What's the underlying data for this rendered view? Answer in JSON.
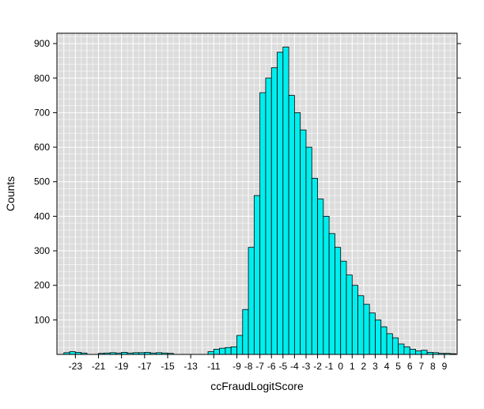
{
  "chart_data": {
    "type": "bar",
    "subtype": "histogram",
    "title": "",
    "xlabel": "ccFraudLogitScore",
    "ylabel": "Counts",
    "bin_width": 0.5,
    "bins": [
      [
        -24.0,
        5
      ],
      [
        -23.5,
        8
      ],
      [
        -23.0,
        6
      ],
      [
        -22.5,
        4
      ],
      [
        -21.0,
        3
      ],
      [
        -20.5,
        4
      ],
      [
        -20.0,
        5
      ],
      [
        -19.5,
        4
      ],
      [
        -19.0,
        6
      ],
      [
        -18.5,
        4
      ],
      [
        -18.0,
        5
      ],
      [
        -17.5,
        5
      ],
      [
        -17.0,
        6
      ],
      [
        -16.5,
        4
      ],
      [
        -16.0,
        5
      ],
      [
        -15.5,
        4
      ],
      [
        -15.0,
        3
      ],
      [
        -11.5,
        8
      ],
      [
        -11.0,
        15
      ],
      [
        -10.5,
        18
      ],
      [
        -10.0,
        20
      ],
      [
        -9.5,
        22
      ],
      [
        -9.0,
        55
      ],
      [
        -8.5,
        130
      ],
      [
        -8.0,
        310
      ],
      [
        -7.5,
        460
      ],
      [
        -7.0,
        758
      ],
      [
        -6.5,
        800
      ],
      [
        -6.0,
        830
      ],
      [
        -5.5,
        875
      ],
      [
        -5.0,
        890
      ],
      [
        -4.5,
        750
      ],
      [
        -4.0,
        700
      ],
      [
        -3.5,
        650
      ],
      [
        -3.0,
        600
      ],
      [
        -2.5,
        510
      ],
      [
        -2.0,
        450
      ],
      [
        -1.5,
        400
      ],
      [
        -1.0,
        350
      ],
      [
        -0.5,
        310
      ],
      [
        0.0,
        270
      ],
      [
        0.5,
        230
      ],
      [
        1.0,
        200
      ],
      [
        1.5,
        170
      ],
      [
        2.0,
        145
      ],
      [
        2.5,
        120
      ],
      [
        3.0,
        100
      ],
      [
        3.5,
        80
      ],
      [
        4.0,
        60
      ],
      [
        4.5,
        48
      ],
      [
        5.0,
        30
      ],
      [
        5.5,
        22
      ],
      [
        6.0,
        15
      ],
      [
        6.5,
        10
      ],
      [
        7.0,
        12
      ],
      [
        7.5,
        6
      ],
      [
        8.0,
        5
      ],
      [
        8.5,
        3
      ],
      [
        9.0,
        3
      ],
      [
        9.5,
        2
      ]
    ],
    "x_ticks": [
      -23,
      -21,
      -19,
      -17,
      -15,
      -13,
      -11,
      -9,
      -8,
      -7,
      -6,
      -5,
      -4,
      -3,
      -2,
      -1,
      0,
      1,
      2,
      3,
      4,
      5,
      6,
      7,
      8,
      9
    ],
    "y_ticks": [
      100,
      200,
      300,
      400,
      500,
      600,
      700,
      800,
      900
    ],
    "xlim": [
      -24.6,
      10.1
    ],
    "ylim": [
      0,
      930
    ],
    "grid": true,
    "legend_position": "none",
    "colors": {
      "bar_fill": "#00EEEE",
      "bar_stroke": "#000000",
      "plot_background": "#DCDCDC",
      "grid_major": "#FFFFFF",
      "grid_minor": "#EBEBEB",
      "axis": "#000000",
      "page_background": "#FFFFFF"
    }
  }
}
